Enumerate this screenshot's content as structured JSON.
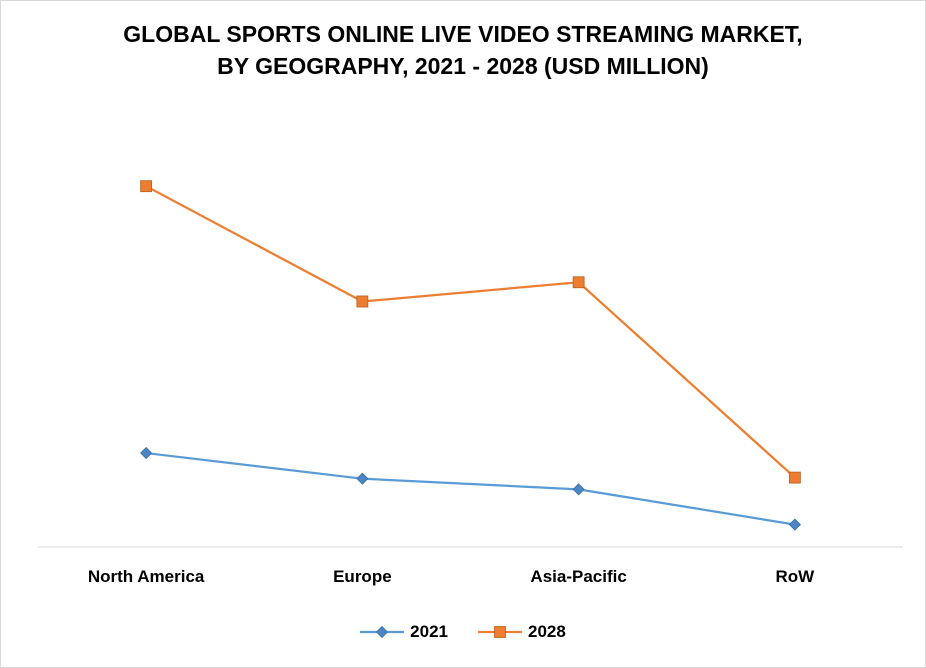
{
  "chart_data": {
    "type": "line",
    "title": [
      "GLOBAL SPORTS ONLINE LIVE VIDEO STREAMING MARKET,",
      "BY GEOGRAPHY, 2021 - 2028 (USD MILLION)"
    ],
    "categories": [
      "North America",
      "Europe",
      "Asia-Pacific",
      "RoW"
    ],
    "series": [
      {
        "name": "2021",
        "values": [
          88,
          64,
          54,
          21
        ],
        "color": "#5b9bd5",
        "marker": "diamond"
      },
      {
        "name": "2028",
        "values": [
          338,
          230,
          248,
          65
        ],
        "color": "#ed7d31",
        "marker": "square"
      }
    ],
    "ylim": [
      0,
      400
    ],
    "grid": false,
    "legend_position": "bottom",
    "xlabel": "",
    "ylabel": ""
  }
}
